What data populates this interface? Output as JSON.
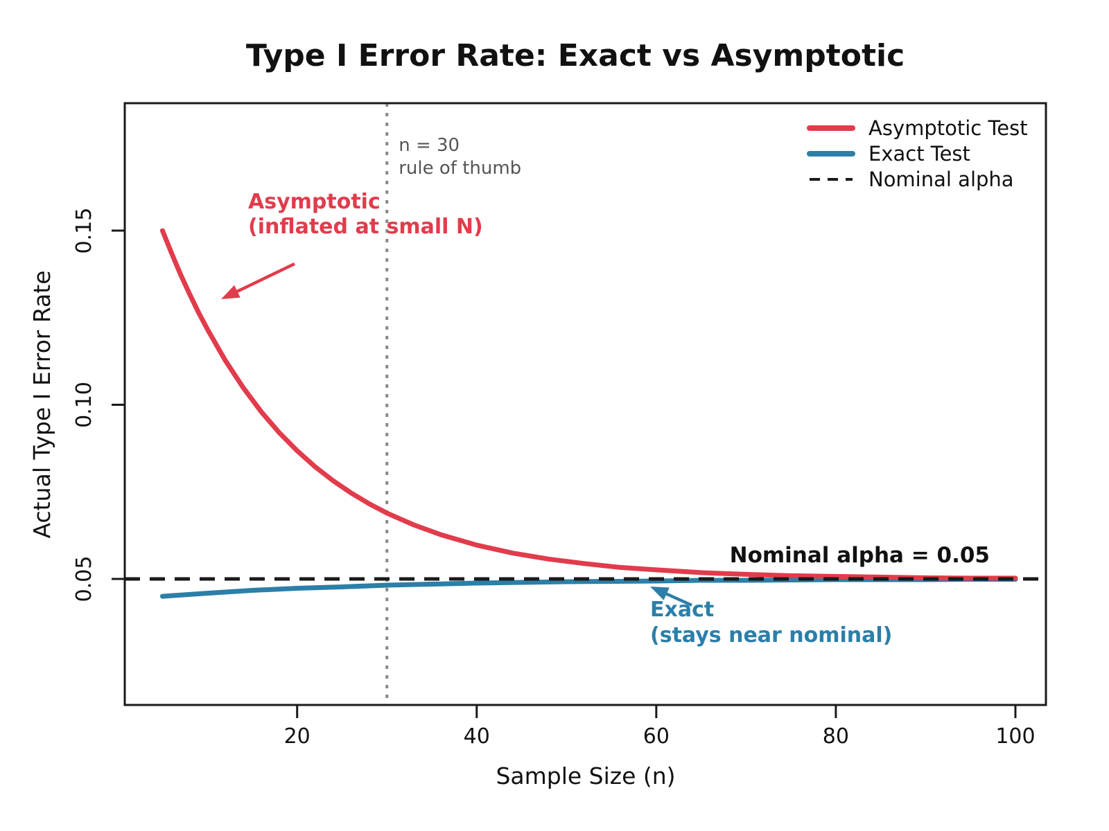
{
  "chart_data": {
    "type": "line",
    "title": "Type I Error Rate: Exact vs Asymptotic",
    "xlabel": "Sample Size (n)",
    "ylabel": "Actual Type I Error Rate",
    "xlim": [
      0.8,
      103.4
    ],
    "ylim": [
      0.0138,
      0.1866
    ],
    "grid": false,
    "legend_position": "top-right-inside",
    "x_ticks": [
      {
        "value": 20,
        "label": "20"
      },
      {
        "value": 40,
        "label": "40"
      },
      {
        "value": 60,
        "label": "60"
      },
      {
        "value": 80,
        "label": "80"
      },
      {
        "value": 100,
        "label": "100"
      }
    ],
    "y_ticks": [
      {
        "value": 0.05,
        "label": "0.05"
      },
      {
        "value": 0.1,
        "label": "0.10"
      },
      {
        "value": 0.15,
        "label": "0.15"
      }
    ],
    "series": [
      {
        "name": "Asymptotic Test",
        "color": "#e13c4c",
        "x": [
          5,
          6,
          7,
          8,
          9,
          10,
          12,
          14,
          16,
          18,
          20,
          22,
          24,
          26,
          28,
          30,
          33,
          36,
          40,
          44,
          48,
          52,
          56,
          60,
          65,
          70,
          75,
          80,
          85,
          90,
          95,
          100
        ],
        "y": [
          0.15,
          0.1436,
          0.1375,
          0.1319,
          0.1266,
          0.1217,
          0.1127,
          0.1049,
          0.098,
          0.092,
          0.0868,
          0.0822,
          0.0782,
          0.0747,
          0.0716,
          0.0689,
          0.0655,
          0.0627,
          0.0597,
          0.0574,
          0.0557,
          0.0544,
          0.0533,
          0.0526,
          0.0518,
          0.0513,
          0.0509,
          0.0507,
          0.0505,
          0.0503,
          0.0502,
          0.0502
        ]
      },
      {
        "name": "Exact Test",
        "color": "#2b7fa8",
        "x": [
          5,
          10,
          15,
          20,
          25,
          30,
          35,
          40,
          45,
          50,
          55,
          60,
          65,
          70,
          75,
          80,
          85,
          90,
          95,
          100
        ],
        "y": [
          0.045,
          0.0459,
          0.0467,
          0.0473,
          0.0477,
          0.0482,
          0.0485,
          0.0488,
          0.049,
          0.0492,
          0.0493,
          0.0494,
          0.0496,
          0.0496,
          0.0497,
          0.0498,
          0.0498,
          0.0498,
          0.0499,
          0.0499
        ]
      }
    ],
    "nominal_line": {
      "value": 0.05,
      "style": "dashed",
      "color": "#1a1a1a"
    },
    "reference_line": {
      "x": 30,
      "style": "dotted",
      "color": "#8a8a8a",
      "label_line1": "n = 30",
      "label_line2": "rule of thumb",
      "label_color": "#555555"
    },
    "legend": [
      {
        "label": "Asymptotic Test",
        "color": "#e13c4c",
        "dashed": false
      },
      {
        "label": "Exact Test",
        "color": "#2b7fa8",
        "dashed": false
      },
      {
        "label": "Nominal alpha",
        "color": "#1a1a1a",
        "dashed": true
      }
    ],
    "annotations": {
      "asymptotic": {
        "line1": "Asymptotic",
        "line2": "(inflated at small N)",
        "color": "#e13c4c"
      },
      "exact": {
        "line1": "Exact",
        "line2": "(stays near nominal)",
        "color": "#2b7fa8"
      },
      "nominal": {
        "text": "Nominal alpha = 0.05",
        "color": "#111111"
      }
    }
  }
}
